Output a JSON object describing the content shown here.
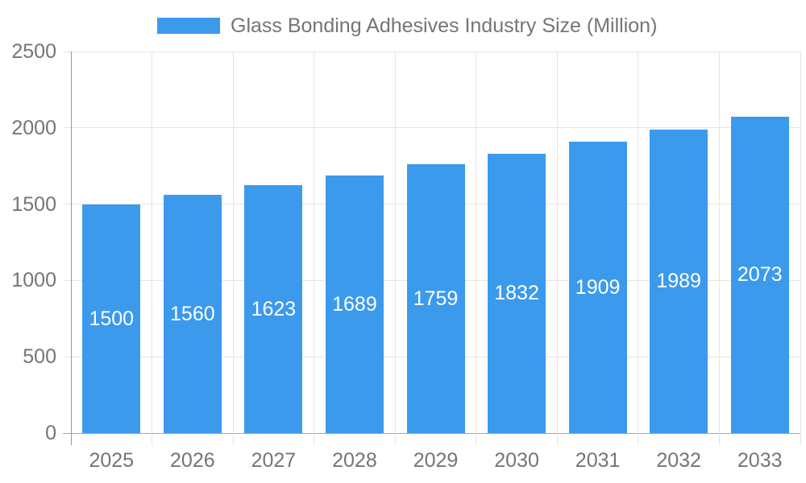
{
  "legend": {
    "label": "Glass Bonding Adhesives Industry Size (Million)",
    "swatch_color": "#3C9AED"
  },
  "chart_data": {
    "type": "bar",
    "title": "Glass Bonding Adhesives Industry Size (Million)",
    "categories": [
      "2025",
      "2026",
      "2027",
      "2028",
      "2029",
      "2030",
      "2031",
      "2032",
      "2033"
    ],
    "values": [
      1500,
      1560,
      1623,
      1689,
      1759,
      1832,
      1909,
      1989,
      2073
    ],
    "series": [
      {
        "name": "Glass Bonding Adhesives Industry Size (Million)",
        "values": [
          1500,
          1560,
          1623,
          1689,
          1759,
          1832,
          1909,
          1989,
          2073
        ]
      }
    ],
    "xlabel": "",
    "ylabel": "",
    "ylim": [
      0,
      2500
    ],
    "yticks": [
      0,
      500,
      1000,
      1500,
      2000,
      2500
    ],
    "grid": true,
    "legend_position": "top-center",
    "bar_color": "#3C9AED",
    "value_label_color": "#FFFFFF",
    "tick_label_color": "#757575",
    "gridline_color": "#E5E5E5",
    "axis_line_color": "#999999",
    "baseline_color": "#A6A6A6",
    "background_color": "#FFFFFF"
  }
}
